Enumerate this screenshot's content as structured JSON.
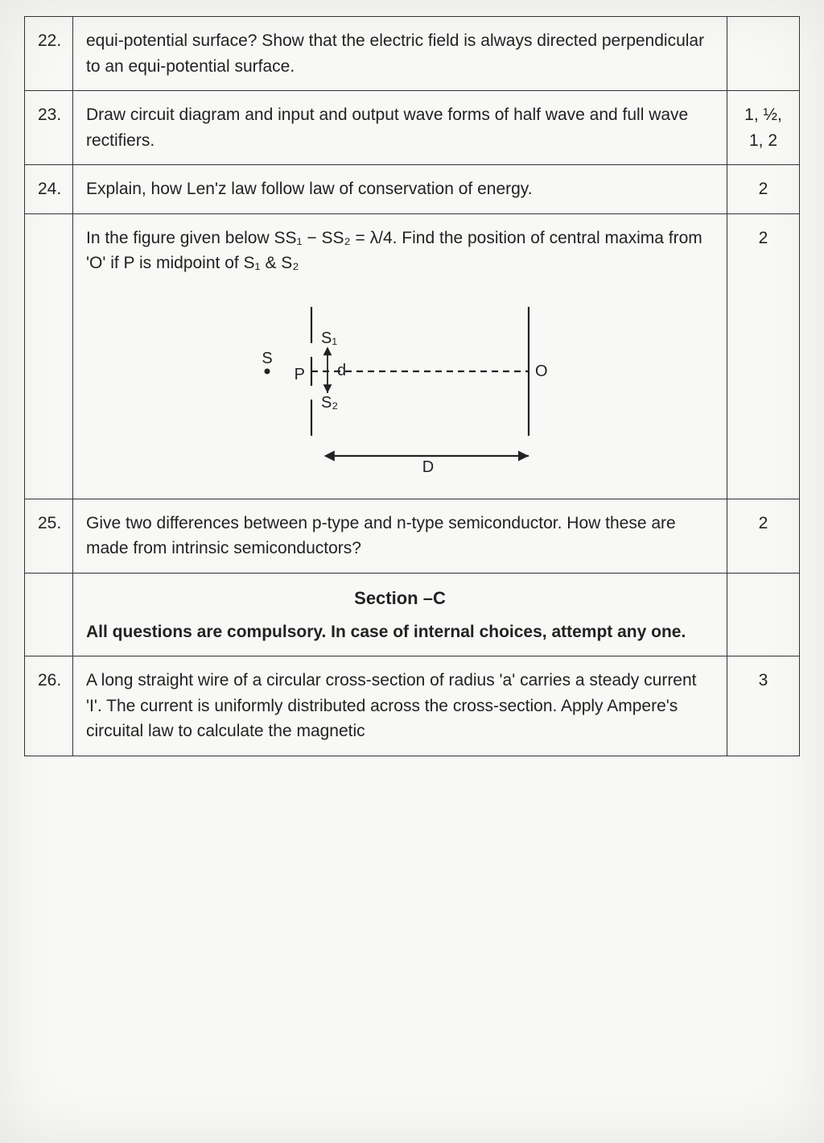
{
  "rows": [
    {
      "num": "22.",
      "text_pre": "equi-potential surface? Show that the electric field is always directed perpendicular to an equi-potential surface.",
      "marks": ""
    },
    {
      "num": "23.",
      "text_pre": "Draw circuit diagram and input and output wave forms of half wave and full wave rectifiers.",
      "marks": "1, ½, 1, 2"
    },
    {
      "num": "24.",
      "text_pre": "Explain, how Len'z law follow law of conservation of energy.",
      "marks": "2"
    },
    {
      "num": "",
      "has_diagram": true,
      "text_pre": "In the figure given below SS₁ − SS₂ = λ/4. Find the position of central maxima from 'O' if P is midpoint of S₁ & S₂",
      "marks": "2",
      "diagram": {
        "labels": {
          "s1": "S₁",
          "s2": "S₂",
          "s": "S",
          "p": "P",
          "d": "d",
          "D": "D",
          "o": "O"
        },
        "stroke": "#222",
        "stroke_width": 2.2,
        "dash": "8 6",
        "font_size": 20
      }
    },
    {
      "num": "25.",
      "text_pre": "Give two differences between p-type and n-type semiconductor. How these are made from intrinsic semiconductors?",
      "marks": "2"
    },
    {
      "num": "",
      "is_section": true,
      "section": "Section –C",
      "instr": "All questions are compulsory. In case of internal choices, attempt any one.",
      "marks": ""
    },
    {
      "num": "26.",
      "text_pre": "A long straight wire of a circular cross-section of radius 'a' carries a steady current 'I'. The current is uniformly distributed across the cross-section. Apply Ampere's circuital law to calculate the magnetic",
      "marks": "3"
    }
  ]
}
